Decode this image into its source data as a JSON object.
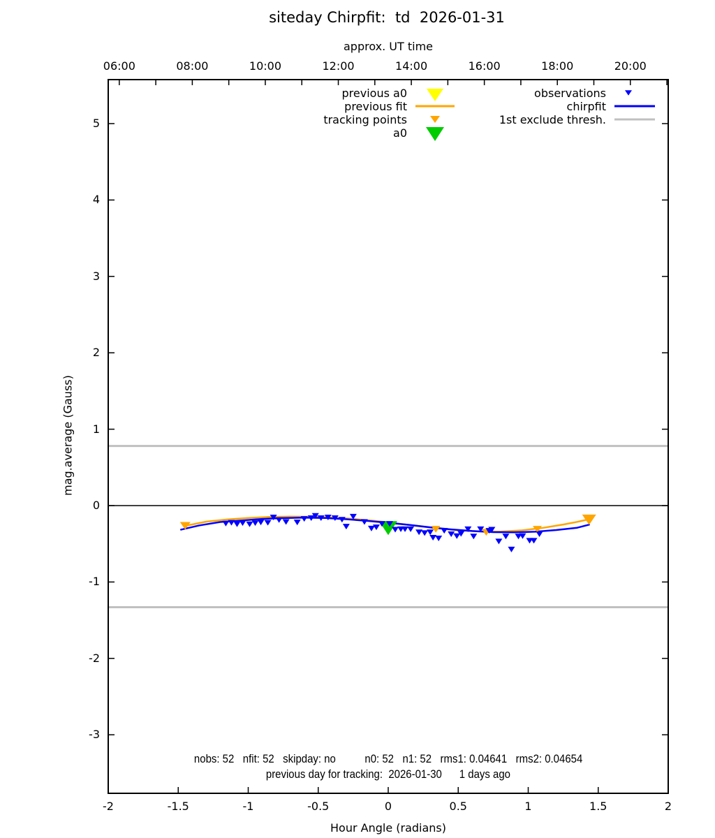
{
  "title": "siteday Chirpfit:  td  2026-01-31",
  "stats": {
    "line1": "nobs: 52   nfit: 52   skipday: no          n0: 52   n1: 52   rms1: 0.04641   rms2: 0.04654",
    "line2": "previous day for tracking:  2026-01-30      1 days ago"
  },
  "legend": {
    "left": [
      {
        "label": "previous a0",
        "marker": "yellow-triangle-down"
      },
      {
        "label": "previous fit",
        "marker": "orange-line"
      },
      {
        "label": "tracking points",
        "marker": "orange-triangle-down"
      },
      {
        "label": "a0",
        "marker": "green-triangle-down"
      }
    ],
    "right": [
      {
        "label": "observations",
        "marker": "blue-triangle-down"
      },
      {
        "label": "chirpfit",
        "marker": "blue-line"
      },
      {
        "label": "1st exclude thresh.",
        "marker": "gray-line"
      }
    ]
  },
  "colors": {
    "observations": "#0000ff",
    "chirpfit": "#0000ff",
    "previous_fit": "#ffa500",
    "tracking_points": "#ffa500",
    "previous_a0": "#ffff00",
    "a0": "#00cc00",
    "exclude_threshold": "#c0c0c0",
    "zero_line": "#000000",
    "axis": "#000000",
    "background": "#ffffff"
  },
  "chart_data": {
    "type": "scatter",
    "title": "siteday Chirpfit:  td  2026-01-31",
    "xlabel": "Hour Angle (radians)",
    "ylabel": "mag.average (Gauss)",
    "x2label": "approx. UT time",
    "xlim": [
      -2,
      2
    ],
    "ylim": [
      -3.77,
      5.58
    ],
    "grid": false,
    "x_ticks": {
      "values": [
        -2,
        -1.5,
        -1,
        -0.5,
        0,
        0.5,
        1,
        1.5,
        2
      ],
      "labels": [
        "-2",
        "-1.5",
        "-1",
        "-0.5",
        "0",
        "0.5",
        "1",
        "1.5",
        "2"
      ]
    },
    "y_ticks": {
      "values": [
        5,
        4,
        3,
        2,
        1,
        0,
        -1,
        -2,
        -3
      ],
      "labels": [
        "5",
        "4",
        "3",
        "2",
        "1",
        "0",
        "-1",
        "-2",
        "-3"
      ]
    },
    "x2_ticks": {
      "labeled_hours": [
        6,
        8,
        10,
        12,
        14,
        16,
        18,
        20
      ],
      "labels": [
        "06:00",
        "08:00",
        "10:00",
        "12:00",
        "14:00",
        "16:00",
        "18:00",
        "20:00"
      ],
      "minor_hours": [
        6,
        7,
        8,
        9,
        10,
        11,
        12,
        13,
        14,
        15,
        16,
        17,
        18,
        19,
        20,
        21
      ],
      "ha_of_hour6": -1.921,
      "ha_per_hour": 0.26075
    },
    "hlines": {
      "zero_line_y": 0,
      "exclude_threshold_upper": 0.78,
      "exclude_threshold_lower": -1.33
    },
    "series": {
      "observations": {
        "marker": "triangle-down",
        "points": [
          [
            -1.16,
            -0.235
          ],
          [
            -1.12,
            -0.225
          ],
          [
            -1.08,
            -0.245
          ],
          [
            -1.04,
            -0.23
          ],
          [
            -0.99,
            -0.245
          ],
          [
            -0.95,
            -0.23
          ],
          [
            -0.91,
            -0.22
          ],
          [
            -0.86,
            -0.225
          ],
          [
            -0.82,
            -0.155
          ],
          [
            -0.78,
            -0.19
          ],
          [
            -0.73,
            -0.215
          ],
          [
            -0.65,
            -0.22
          ],
          [
            -0.6,
            -0.175
          ],
          [
            -0.55,
            -0.165
          ],
          [
            -0.52,
            -0.135
          ],
          [
            -0.48,
            -0.165
          ],
          [
            -0.43,
            -0.155
          ],
          [
            -0.38,
            -0.165
          ],
          [
            -0.33,
            -0.185
          ],
          [
            -0.3,
            -0.275
          ],
          [
            -0.25,
            -0.145
          ],
          [
            -0.17,
            -0.215
          ],
          [
            -0.12,
            -0.3
          ],
          [
            -0.085,
            -0.285
          ],
          [
            -0.045,
            -0.24
          ],
          [
            0.01,
            -0.24
          ],
          [
            0.05,
            -0.315
          ],
          [
            0.09,
            -0.31
          ],
          [
            0.12,
            -0.31
          ],
          [
            0.16,
            -0.31
          ],
          [
            0.22,
            -0.35
          ],
          [
            0.26,
            -0.36
          ],
          [
            0.3,
            -0.35
          ],
          [
            0.32,
            -0.42
          ],
          [
            0.36,
            -0.43
          ],
          [
            0.4,
            -0.33
          ],
          [
            0.45,
            -0.375
          ],
          [
            0.49,
            -0.4
          ],
          [
            0.52,
            -0.37
          ],
          [
            0.57,
            -0.31
          ],
          [
            0.61,
            -0.405
          ],
          [
            0.66,
            -0.31
          ],
          [
            0.72,
            -0.33
          ],
          [
            0.74,
            -0.315
          ],
          [
            0.79,
            -0.47
          ],
          [
            0.84,
            -0.405
          ],
          [
            0.88,
            -0.575
          ],
          [
            0.93,
            -0.405
          ],
          [
            0.96,
            -0.4
          ],
          [
            1.01,
            -0.46
          ],
          [
            1.04,
            -0.46
          ],
          [
            1.08,
            -0.375
          ]
        ]
      },
      "chirpfit": {
        "line": [
          [
            -1.48,
            -0.315
          ],
          [
            -1.35,
            -0.26
          ],
          [
            -1.2,
            -0.215
          ],
          [
            -1.05,
            -0.195
          ],
          [
            -0.9,
            -0.175
          ],
          [
            -0.75,
            -0.163
          ],
          [
            -0.6,
            -0.158
          ],
          [
            -0.45,
            -0.162
          ],
          [
            -0.3,
            -0.178
          ],
          [
            -0.15,
            -0.2
          ],
          [
            0,
            -0.225
          ],
          [
            0.15,
            -0.253
          ],
          [
            0.3,
            -0.285
          ],
          [
            0.45,
            -0.312
          ],
          [
            0.6,
            -0.333
          ],
          [
            0.75,
            -0.347
          ],
          [
            0.9,
            -0.35
          ],
          [
            1.05,
            -0.342
          ],
          [
            1.2,
            -0.32
          ],
          [
            1.35,
            -0.29
          ],
          [
            1.435,
            -0.25
          ]
        ]
      },
      "previous_fit": {
        "line": [
          [
            -1.45,
            -0.265
          ],
          [
            -1.3,
            -0.21
          ],
          [
            -1.15,
            -0.182
          ],
          [
            -1.0,
            -0.162
          ],
          [
            -0.85,
            -0.149
          ],
          [
            -0.7,
            -0.144
          ],
          [
            -0.55,
            -0.146
          ],
          [
            -0.4,
            -0.156
          ],
          [
            -0.25,
            -0.174
          ],
          [
            -0.1,
            -0.199
          ],
          [
            0.05,
            -0.231
          ],
          [
            0.2,
            -0.265
          ],
          [
            0.35,
            -0.298
          ],
          [
            0.5,
            -0.324
          ],
          [
            0.65,
            -0.338
          ],
          [
            0.8,
            -0.34
          ],
          [
            0.95,
            -0.325
          ],
          [
            1.1,
            -0.293
          ],
          [
            1.25,
            -0.248
          ],
          [
            1.35,
            -0.213
          ],
          [
            1.435,
            -0.178
          ]
        ]
      },
      "tracking_points": {
        "marker": "triangle-down",
        "points": [
          [
            -1.45,
            -0.265
          ],
          [
            0.34,
            -0.31
          ],
          [
            0.7,
            -0.35
          ],
          [
            1.065,
            -0.31
          ],
          [
            1.435,
            -0.185
          ]
        ],
        "widths": [
          15,
          13,
          13,
          13,
          20
        ]
      },
      "previous_a0": {
        "marker": "triangle-down",
        "point": [
          0.0,
          -0.295
        ]
      },
      "a0": {
        "marker": "triangle-down",
        "point": [
          0.0,
          -0.295
        ]
      }
    }
  }
}
